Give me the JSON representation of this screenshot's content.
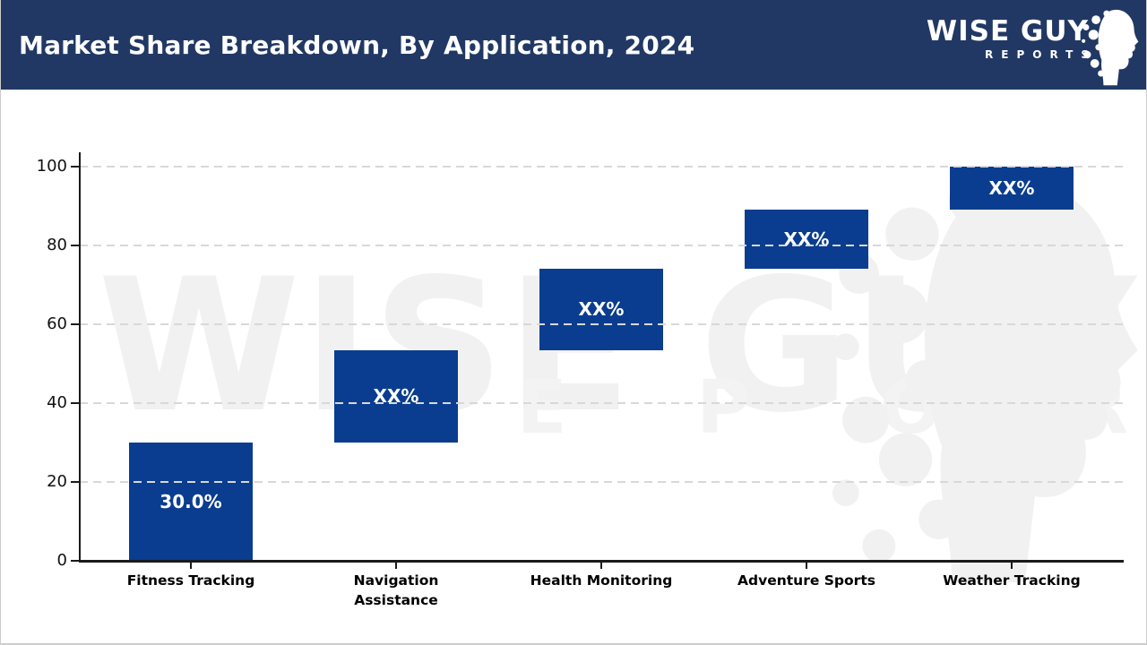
{
  "header": {
    "title": "Market Share Breakdown, By Application, 2024",
    "logo": {
      "line1": "WISE GUY",
      "line2": "REPORTS"
    }
  },
  "watermark": {
    "line1": "WISE GUY",
    "line2": "R E P O R T S"
  },
  "chart_data": {
    "type": "bar",
    "subtype": "floating-waterfall",
    "title": "Market Share Breakdown, By Application, 2024",
    "xlabel": "",
    "ylabel": "",
    "categories": [
      "Fitness Tracking",
      "Navigation\nAssistance",
      "Health Monitoring",
      "Adventure Sports",
      "Weather Tracking"
    ],
    "values": [
      30.0,
      23.5,
      20.5,
      15.0,
      11.0
    ],
    "segments": [
      {
        "start": 0,
        "end": 30.0
      },
      {
        "start": 30.0,
        "end": 53.5
      },
      {
        "start": 53.5,
        "end": 74.0
      },
      {
        "start": 74.0,
        "end": 89.0
      },
      {
        "start": 89.0,
        "end": 100.0
      }
    ],
    "bar_labels": [
      "30.0%",
      "XX%",
      "XX%",
      "XX%",
      "XX%"
    ],
    "yticks": [
      0,
      20,
      40,
      60,
      80,
      100
    ],
    "ytick_labels": [
      "0",
      "20",
      "40",
      "60",
      "80",
      "100"
    ],
    "ylim": [
      0,
      103.5
    ],
    "grid": "horizontal dashed, drawn above bars",
    "legend": "none",
    "bar_color": "#0a3d8f",
    "bar_label_color": "#ffffff",
    "header_bg": "#213864",
    "grid_color": "#d8d8d8",
    "axis_color": "#1a1a1a"
  }
}
